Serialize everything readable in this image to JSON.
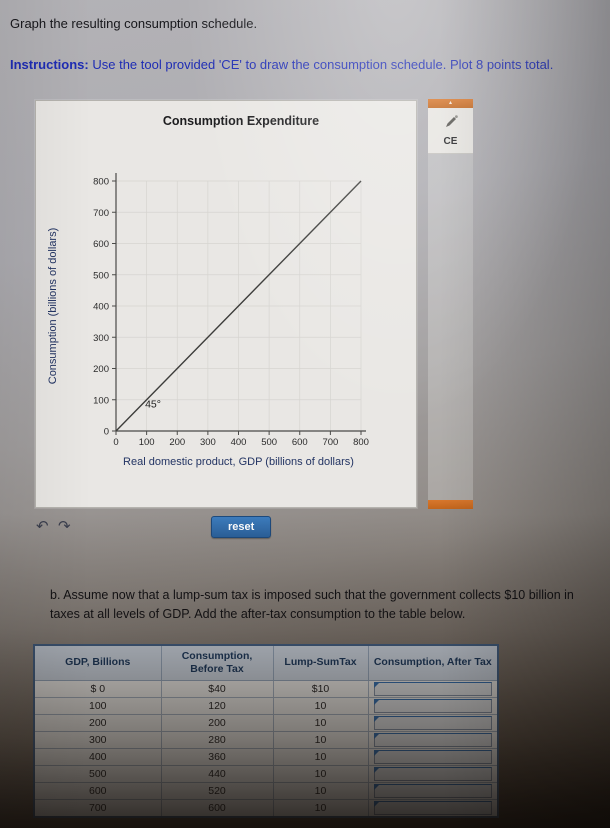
{
  "page": {
    "prompt": "Graph the resulting consumption schedule.",
    "instructions_label": "Instructions:",
    "instructions_text": "Use the tool provided 'CE' to draw the consumption schedule. Plot 8 points total.",
    "part_b_text": "b. Assume now that a lump-sum tax is imposed such that the government collects $10 billion in taxes at all levels of GDP. Add the after-tax consumption to the table below."
  },
  "chart_data": {
    "type": "line",
    "title": "Consumption Expenditure",
    "xlabel": "Real domestic product, GDP (billions of dollars)",
    "ylabel": "Consumption (billions of dollars)",
    "xlim": [
      0,
      800
    ],
    "ylim": [
      0,
      800
    ],
    "xticks": [
      0,
      100,
      200,
      300,
      400,
      500,
      600,
      700,
      800
    ],
    "yticks": [
      0,
      100,
      200,
      300,
      400,
      500,
      600,
      700,
      800
    ],
    "grid": true,
    "legend": "none",
    "series": [
      {
        "name": "45-degree reference line",
        "x": [
          0,
          800
        ],
        "y": [
          0,
          800
        ]
      }
    ],
    "annotations": [
      {
        "text": "45°",
        "x": 95,
        "y": 75
      }
    ]
  },
  "tool_panel": {
    "tool_label": "CE",
    "icon": "pencil-icon",
    "scroll_up": "▴",
    "scroll_down": "▾"
  },
  "controls": {
    "undo_icon": "↶",
    "redo_icon": "↷",
    "reset_label": "reset"
  },
  "table": {
    "headers": [
      "GDP, Billions",
      "Consumption, Before Tax",
      "Lump-SumTax",
      "Consumption, After Tax"
    ],
    "rows": [
      {
        "gdp": "$ 0",
        "before_tax": "$40",
        "tax": "$10",
        "after_tax": ""
      },
      {
        "gdp": "100",
        "before_tax": "120",
        "tax": "10",
        "after_tax": ""
      },
      {
        "gdp": "200",
        "before_tax": "200",
        "tax": "10",
        "after_tax": ""
      },
      {
        "gdp": "300",
        "before_tax": "280",
        "tax": "10",
        "after_tax": ""
      },
      {
        "gdp": "400",
        "before_tax": "360",
        "tax": "10",
        "after_tax": ""
      },
      {
        "gdp": "500",
        "before_tax": "440",
        "tax": "10",
        "after_tax": ""
      },
      {
        "gdp": "600",
        "before_tax": "520",
        "tax": "10",
        "after_tax": ""
      },
      {
        "gdp": "700",
        "before_tax": "600",
        "tax": "10",
        "after_tax": ""
      }
    ]
  },
  "colors": {
    "accent_orange": "#cd6e22",
    "button_blue": "#2f6fad",
    "instructions_blue": "#1e2cb4",
    "table_header_bg": "#ccd6e3"
  }
}
